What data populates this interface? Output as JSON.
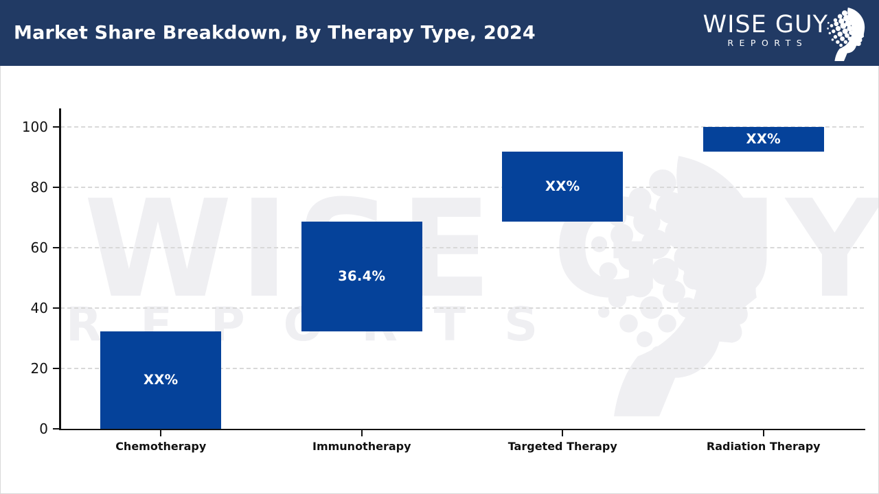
{
  "header": {
    "title": "Market Share Breakdown, By Therapy Type, 2024",
    "logo": {
      "brand_top": "WISE GUY",
      "brand_bottom": "REPORTS"
    }
  },
  "watermark": {
    "line1": "WISE GUY",
    "line2": "REPORTS"
  },
  "colors": {
    "header_bg": "#213A64",
    "bar": "#05429A",
    "grid": "#D8D8D8",
    "axis": "#111111",
    "text": "#111111",
    "watermark": "#EFEFF2",
    "frame": "#D9D9D9",
    "bar_label": "#FFFFFF"
  },
  "chart_data": {
    "type": "bar",
    "subtype": "waterfall-floating",
    "title": "",
    "xlabel": "",
    "ylabel": "",
    "categories": [
      "Chemotherapy",
      "Immunotherapy",
      "Targeted Therapy",
      "Radiation Therapy"
    ],
    "segments": [
      {
        "category": "Chemotherapy",
        "start": 0,
        "end": 32.3,
        "label": "XX%"
      },
      {
        "category": "Immunotherapy",
        "start": 32.3,
        "end": 68.7,
        "label": "36.4%"
      },
      {
        "category": "Targeted Therapy",
        "start": 68.7,
        "end": 91.9,
        "label": "XX%"
      },
      {
        "category": "Radiation Therapy",
        "start": 91.9,
        "end": 100,
        "label": "XX%"
      }
    ],
    "ylim": [
      0,
      100
    ],
    "yticks": [
      0,
      20,
      40,
      60,
      80,
      100
    ],
    "grid": "dashed-horizontal",
    "legend": "none"
  }
}
